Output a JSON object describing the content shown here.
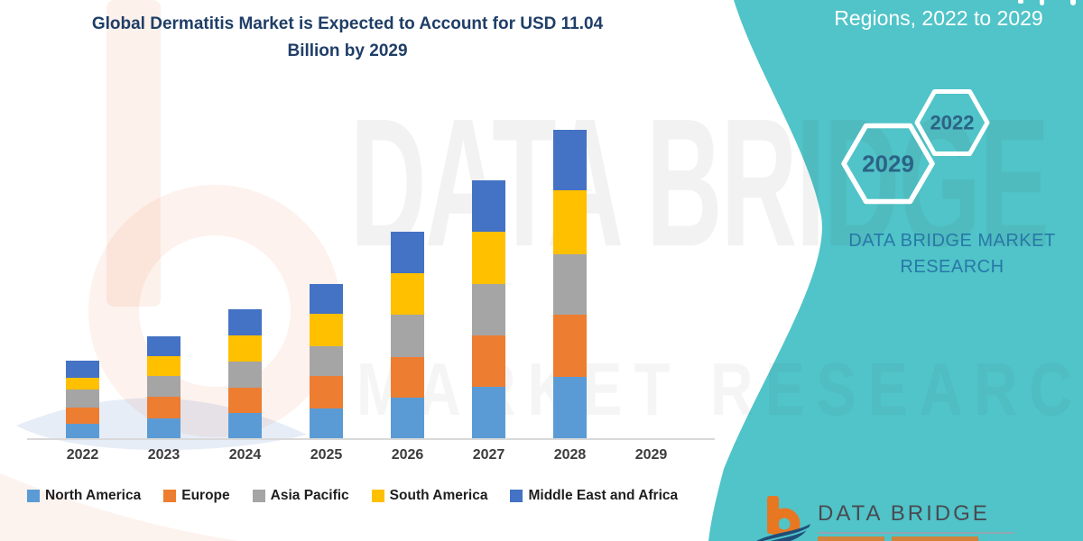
{
  "title": {
    "line1": "Global Dermatitis Market is Expected to Account for USD 11.04",
    "line2": "Billion by 2029"
  },
  "side_panel": {
    "heading": "Regions, 2022 to 2029",
    "hexagons": [
      {
        "label": "2029"
      },
      {
        "label": "2022"
      }
    ],
    "brand_line1": "DATA BRIDGE MARKET",
    "brand_line2": "RESEARCH"
  },
  "watermark": {
    "line1": "DATA BRIDGE",
    "line2": "MARKET RESEARCH"
  },
  "footer_logo": {
    "brand": "DATA BRIDGE"
  },
  "colors": {
    "panel_teal": "#50C4C8",
    "title_text": "#1F3E67",
    "panel_heading_text": "#FFFFFF",
    "hexagon_outline": "#FFFFFF",
    "hexagon_text": "#2B6386",
    "brand_text": "#2878A8",
    "axis_line": "#D9D9D9",
    "tick_text": "#3C3C3C",
    "legend_text": "#1E1E1E",
    "footer_text": "#4A4A52",
    "logo_orange": "#E87722",
    "logo_navy": "#1F4E79"
  },
  "chart_data": {
    "type": "bar",
    "stacked": true,
    "title": "Global Dermatitis Market is Expected to Account for USD 11.04 Billion by 2029",
    "xlabel": "",
    "ylabel": "",
    "y_axis_visible": false,
    "x_axis_line": true,
    "grid": false,
    "legend_position": "bottom",
    "units": "relative segment height (no value axis shown in figure)",
    "categories": [
      "2022",
      "2023",
      "2024",
      "2025",
      "2026",
      "2027",
      "2028",
      "2029"
    ],
    "series": [
      {
        "name": "North America",
        "color": "#5B9BD5",
        "values": [
          17,
          23,
          29,
          34,
          46,
          58,
          69,
          null
        ]
      },
      {
        "name": "Europe",
        "color": "#ED7D31",
        "values": [
          18,
          24,
          28,
          36,
          45,
          57,
          69,
          null
        ]
      },
      {
        "name": "Asia Pacific",
        "color": "#A5A5A5",
        "values": [
          20,
          23,
          29,
          33,
          47,
          57,
          67,
          null
        ]
      },
      {
        "name": "South America",
        "color": "#FFC000",
        "values": [
          13,
          22,
          29,
          36,
          46,
          58,
          71,
          null
        ]
      },
      {
        "name": "Middle East and Africa",
        "color": "#4472C4",
        "values": [
          19,
          22,
          29,
          33,
          46,
          57,
          67,
          null
        ]
      }
    ],
    "totals_by_year": [
      87,
      114,
      144,
      172,
      230,
      287,
      343,
      null
    ]
  }
}
